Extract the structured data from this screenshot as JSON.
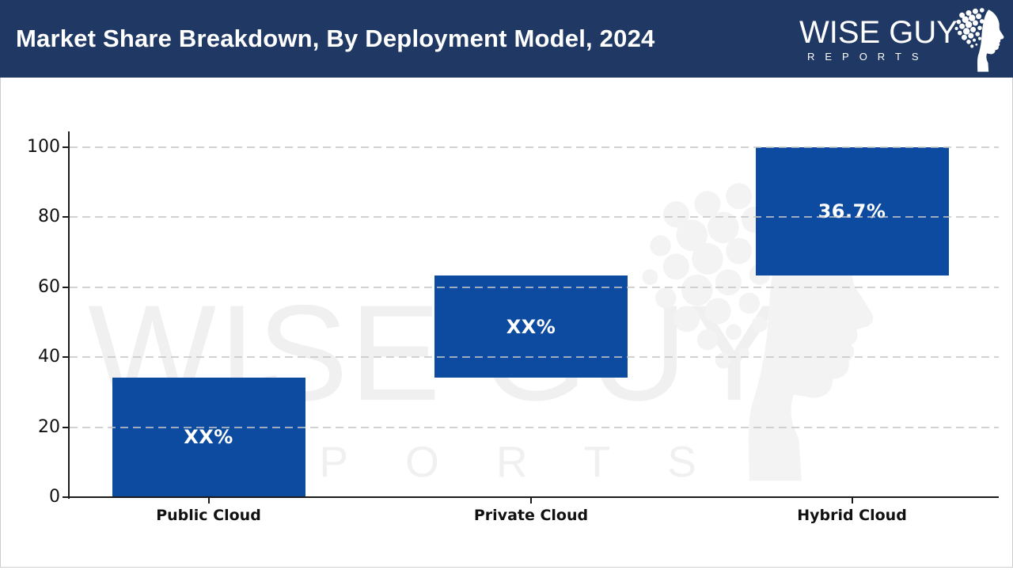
{
  "header": {
    "title": "Market Share Breakdown, By Deployment Model, 2024",
    "logo": {
      "name": "WISE GUY",
      "tagline": "REPORTS"
    }
  },
  "watermark": {
    "line1": "WISE GUY",
    "line2": "REPORTS"
  },
  "colors": {
    "header_bg": "#1f3864",
    "bar": "#0c4ba0",
    "grid": "#c6c6c6",
    "axis": "#1a1a1a",
    "bar_label": "#ffffff",
    "watermark": "#f0f0f0"
  },
  "chart_data": {
    "type": "bar",
    "variant": "floating-segment-waterfall",
    "title": "Market Share Breakdown, By Deployment Model, 2024",
    "categories": [
      "Public Cloud",
      "Private Cloud",
      "Hybrid Cloud"
    ],
    "series": [
      {
        "name": "Market share (%)",
        "segments": [
          {
            "category": "Public Cloud",
            "start": 0,
            "end": 34.2,
            "value_label": "XX%"
          },
          {
            "category": "Private Cloud",
            "start": 34.2,
            "end": 63.3,
            "value_label": "XX%"
          },
          {
            "category": "Hybrid Cloud",
            "start": 63.3,
            "end": 100,
            "value_label": "36.7%"
          }
        ]
      }
    ],
    "xlabel": "",
    "ylabel": "",
    "ylim": [
      0,
      104.5
    ],
    "yticks": [
      0,
      20,
      40,
      60,
      80,
      100
    ],
    "grid": "horizontal dashed gridlines drawn above bars",
    "legend_position": "none"
  }
}
